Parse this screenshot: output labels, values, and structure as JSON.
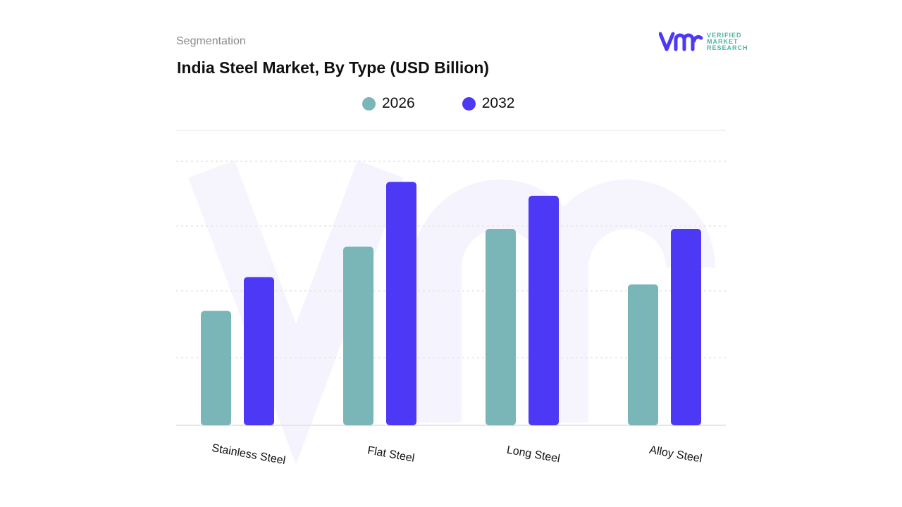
{
  "header": {
    "segment_label": "Segmentation",
    "title": "India Steel Market, By Type (USD Billion)"
  },
  "logo": {
    "line1": "VERIFIED",
    "line2": "MARKET",
    "line3": "RESEARCH",
    "mark": "vmr"
  },
  "chart_data": {
    "type": "bar",
    "title": "India Steel Market, By Type (USD Billion)",
    "categories": [
      "Stainless Steel",
      "Flat Steel",
      "Long Steel",
      "Alloy Steel"
    ],
    "series": [
      {
        "name": "2026",
        "color": "#7ab5b8",
        "values": [
          1.73,
          2.7,
          2.97,
          2.13
        ]
      },
      {
        "name": "2032",
        "color": "#4d38f5",
        "values": [
          2.24,
          3.68,
          3.47,
          2.97
        ]
      }
    ],
    "ylim": [
      0,
      4.46
    ],
    "y_axis_labels_shown": false,
    "grid": true,
    "legend_position": "top-center",
    "xlabel": "",
    "ylabel": ""
  }
}
